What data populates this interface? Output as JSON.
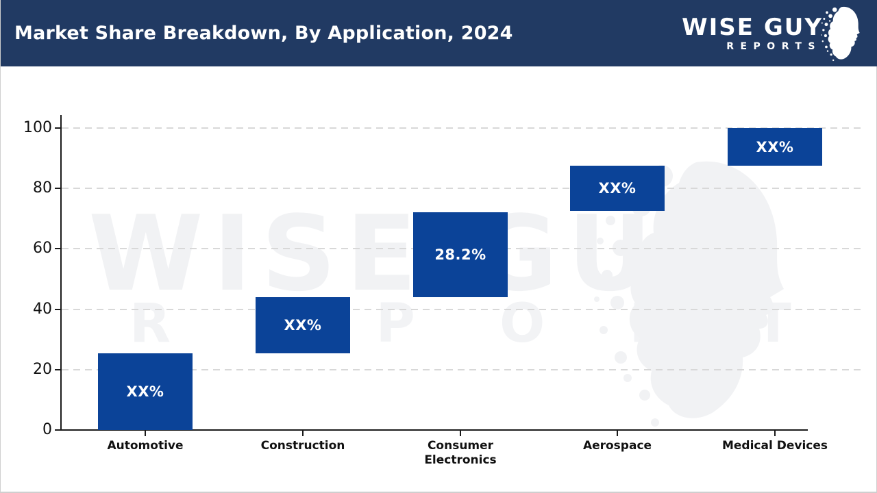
{
  "header": {
    "title": "Market Share Breakdown, By Application, 2024",
    "logo": {
      "line1": "WISE GUY",
      "line2": "REPORTS"
    }
  },
  "watermark": {
    "line1": "WISE GUY",
    "line2": "R E P O R T S"
  },
  "chart_data": {
    "type": "bar",
    "subtype": "floating-segment-waterfall",
    "title": "Market Share Breakdown, By Application, 2024",
    "categories": [
      "Automotive",
      "Construction",
      "Consumer Electronics",
      "Aerospace",
      "Medical Devices"
    ],
    "segments": [
      {
        "category": "Automotive",
        "start": 0,
        "end": 25.5,
        "label": "XX%"
      },
      {
        "category": "Construction",
        "start": 25.5,
        "end": 44.0,
        "label": "XX%"
      },
      {
        "category": "Consumer Electronics",
        "start": 44.0,
        "end": 72.2,
        "label": "28.2%"
      },
      {
        "category": "Aerospace",
        "start": 72.5,
        "end": 87.5,
        "label": "XX%"
      },
      {
        "category": "Medical Devices",
        "start": 87.5,
        "end": 100,
        "label": "XX%"
      }
    ],
    "y_ticks": [
      0,
      20,
      40,
      60,
      80,
      100
    ],
    "ylim": [
      0,
      100
    ],
    "grid": "dashed-horizontal",
    "legend": "none",
    "colors": {
      "bar": "#0b4398",
      "header_bg": "#213a63",
      "axis": "#1a1a1a",
      "grid_line": "#d8d8d8",
      "bar_label": "#ffffff",
      "watermark": "#f1f2f4"
    }
  }
}
